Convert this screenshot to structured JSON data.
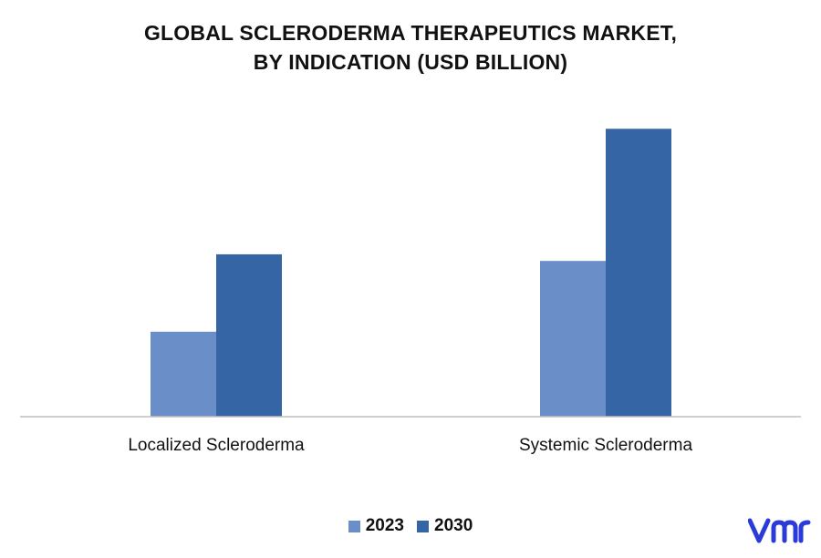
{
  "chart_data": {
    "type": "bar",
    "title": "GLOBAL SCLERODERMA THERAPEUTICS MARKET, BY INDICATION (USD BILLION)",
    "title_lines": [
      "GLOBAL SCLERODERMA THERAPEUTICS MARKET,",
      "BY INDICATION (USD BILLION)"
    ],
    "categories": [
      "Localized Scleroderma",
      "Systemic Scleroderma"
    ],
    "series": [
      {
        "name": "2023",
        "values": [
          0.9,
          1.65
        ],
        "color": "#6a8fc8"
      },
      {
        "name": "2030",
        "values": [
          1.72,
          3.05
        ],
        "color": "#3565a5"
      }
    ],
    "ylim": [
      0,
      3.4
    ],
    "xlabel": "",
    "ylabel": "",
    "grid": false,
    "legend": "bottom-center"
  },
  "logo": {
    "text": "vmr",
    "color": "#2a3bd9"
  }
}
